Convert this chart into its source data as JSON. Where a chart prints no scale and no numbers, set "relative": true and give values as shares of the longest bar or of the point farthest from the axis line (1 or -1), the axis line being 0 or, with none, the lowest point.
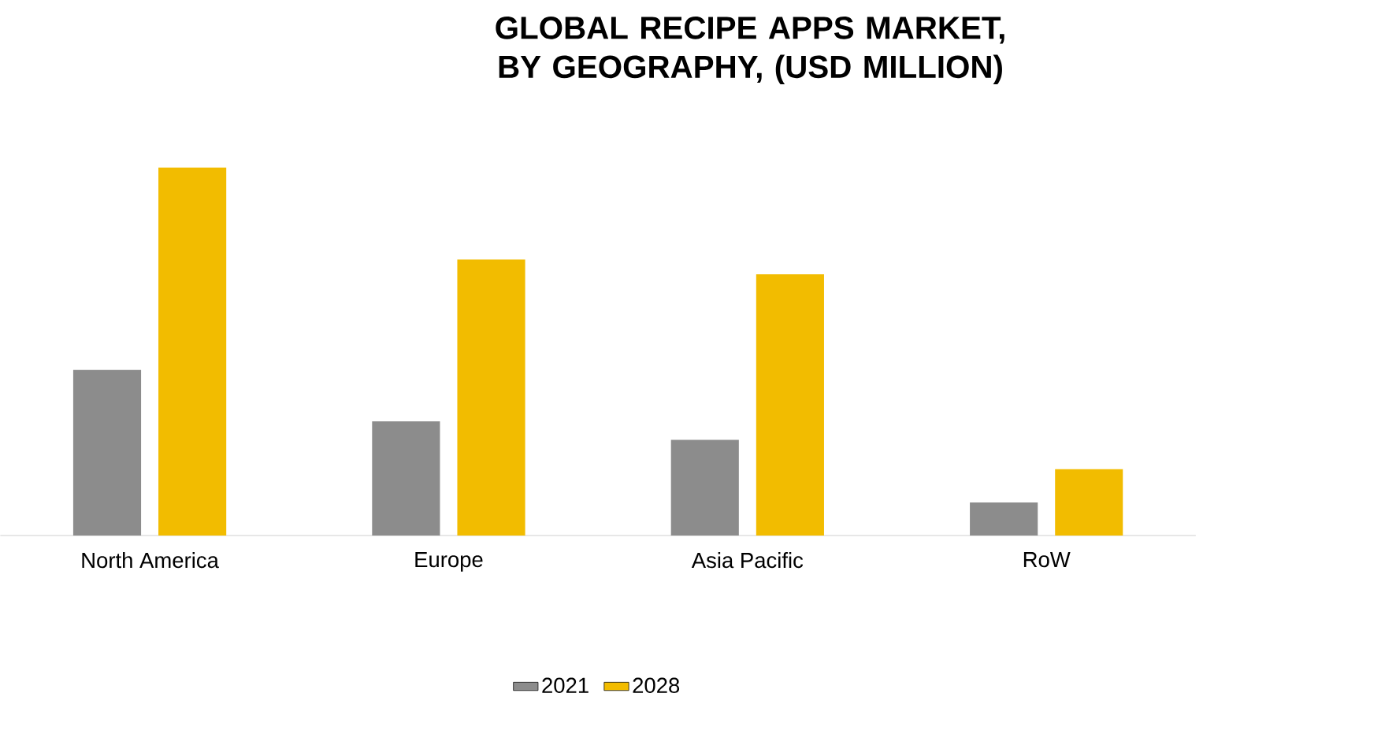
{
  "chart_data": {
    "type": "bar",
    "title": "GLOBAL  RECIPE APPS MARKET, BY GEOGRAPHY, (USD MILLION)",
    "categories": [
      "North America",
      "Europe",
      "Asia Pacific",
      "RoW"
    ],
    "relative": true,
    "legend": "bottom",
    "series": [
      {
        "name": "2021",
        "color": "#8c8c8c",
        "values": [
          0.45,
          0.31,
          0.26,
          0.09
        ]
      },
      {
        "name": "2028",
        "color": "#f2bc00",
        "values": [
          1,
          0.75,
          0.71,
          0.18
        ]
      }
    ]
  }
}
